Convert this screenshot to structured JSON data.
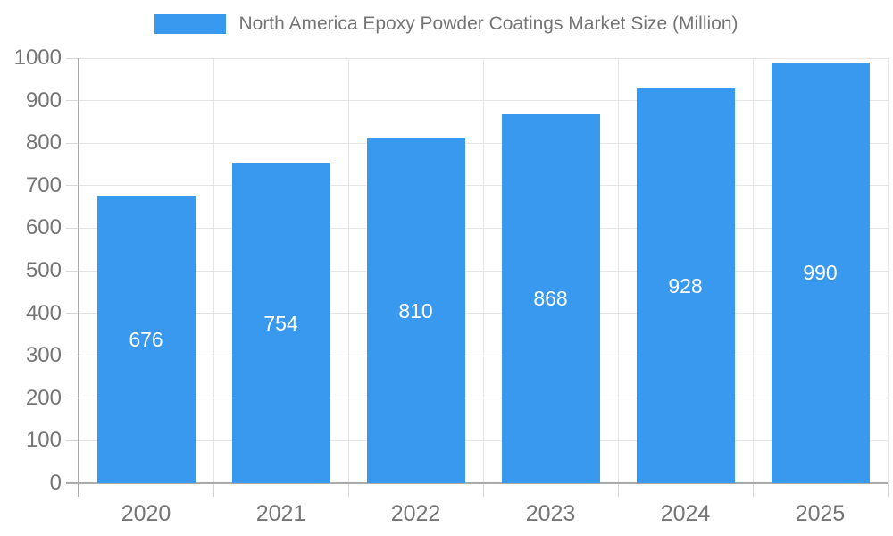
{
  "chart_data": {
    "type": "bar",
    "title": "North America Epoxy Powder Coatings Market Size (Million)",
    "legend": {
      "label": "North America Epoxy Powder Coatings Market Size (Million)",
      "position": "top-center"
    },
    "categories": [
      "2020",
      "2021",
      "2022",
      "2023",
      "2024",
      "2025"
    ],
    "values": [
      676,
      754,
      810,
      868,
      928,
      990
    ],
    "bar_value_labels": [
      "676",
      "754",
      "810",
      "868",
      "928",
      "990"
    ],
    "xlabel": "",
    "ylabel": "",
    "ylim": [
      0,
      1000
    ],
    "yticks": [
      0,
      100,
      200,
      300,
      400,
      500,
      600,
      700,
      800,
      900,
      1000
    ],
    "grid": true,
    "colors": {
      "bar": "#3999EE",
      "bar_label_text": "#ffffff",
      "axis_text": "#757575",
      "gridline": "#e6e6e6",
      "tick": "#d6d6d6",
      "axis_line": "#ababab",
      "background": "#ffffff"
    }
  }
}
